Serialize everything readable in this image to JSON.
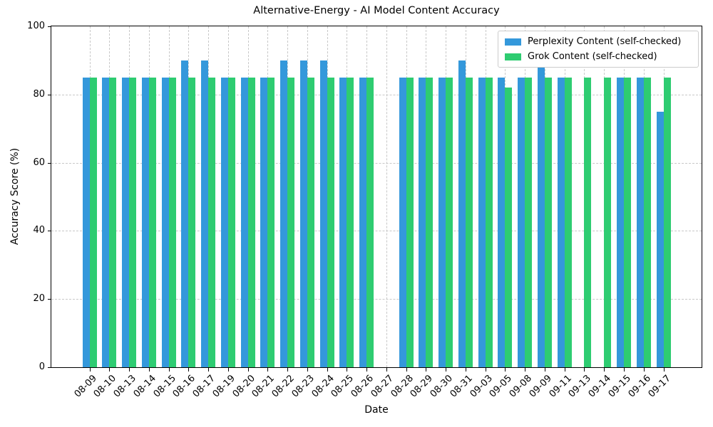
{
  "figure": {
    "title": "Alternative-Energy - AI Model Content Accuracy",
    "xlabel": "Date",
    "ylabel": "Accuracy Score (%)"
  },
  "chart_data": {
    "type": "bar",
    "title": "Alternative-Energy - AI Model Content Accuracy",
    "xlabel": "Date",
    "ylabel": "Accuracy Score (%)",
    "ylim": [
      0,
      100
    ],
    "yticks": [
      0,
      20,
      40,
      60,
      80,
      100
    ],
    "grid": true,
    "grid_style": "dashed",
    "legend_position": "upper right",
    "categories": [
      "08-09",
      "08-10",
      "08-13",
      "08-14",
      "08-15",
      "08-16",
      "08-17",
      "08-19",
      "08-20",
      "08-21",
      "08-22",
      "08-23",
      "08-24",
      "08-25",
      "08-26",
      "08-27",
      "08-28",
      "08-29",
      "08-30",
      "08-31",
      "09-03",
      "09-05",
      "09-08",
      "09-09",
      "09-11",
      "09-13",
      "09-14",
      "09-15",
      "09-16",
      "09-17"
    ],
    "series": [
      {
        "name": "Perplexity Content (self-checked)",
        "color": "#3498db",
        "values": [
          85,
          85,
          85,
          85,
          85,
          90,
          90,
          85,
          85,
          85,
          90,
          90,
          90,
          85,
          85,
          null,
          85,
          85,
          85,
          90,
          85,
          85,
          85,
          90,
          85,
          null,
          null,
          85,
          85,
          75
        ]
      },
      {
        "name": "Grok Content (self-checked)",
        "color": "#2ecc71",
        "values": [
          85,
          85,
          85,
          85,
          85,
          85,
          85,
          85,
          85,
          85,
          85,
          85,
          85,
          85,
          85,
          null,
          85,
          85,
          85,
          85,
          85,
          82,
          85,
          85,
          85,
          85,
          85,
          85,
          85,
          85
        ]
      }
    ]
  }
}
